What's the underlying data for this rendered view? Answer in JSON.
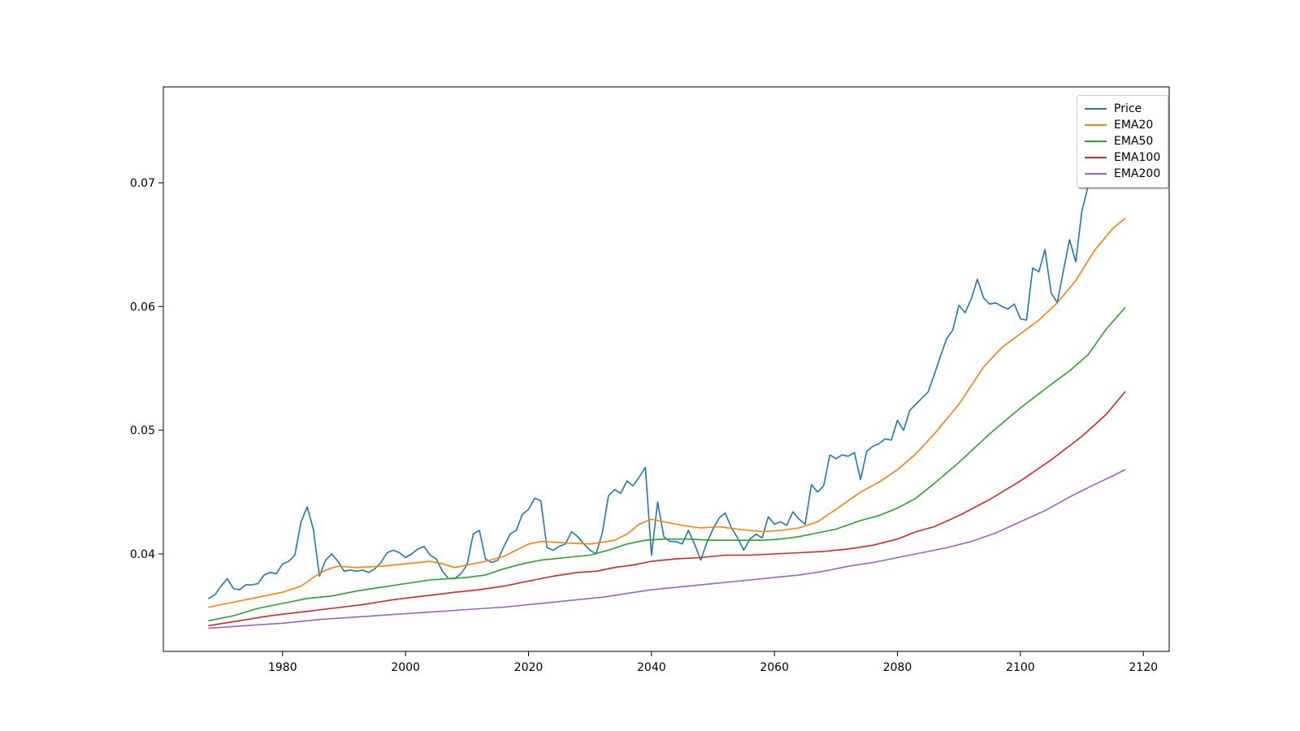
{
  "figure": {
    "background": "#ffffff",
    "description": "Line chart of Price with EMA20/EMA50/EMA100/EMA200 overlays"
  },
  "chart_data": {
    "type": "line",
    "title": "",
    "xlabel": "",
    "ylabel": "",
    "grid": false,
    "xlim": [
      1960.6,
      2124.2
    ],
    "ylim": [
      0.03212,
      0.07775
    ],
    "x_ticks": [
      1980,
      2000,
      2020,
      2040,
      2060,
      2080,
      2100,
      2120
    ],
    "x_tick_labels": [
      "1980",
      "2000",
      "2020",
      "2040",
      "2060",
      "2080",
      "2100",
      "2120"
    ],
    "y_ticks": [
      0.04,
      0.05,
      0.06,
      0.07
    ],
    "y_tick_labels": [
      "0.04",
      "0.05",
      "0.06",
      "0.07"
    ],
    "legend": {
      "position": "upper right",
      "labels": [
        "Price",
        "EMA20",
        "EMA50",
        "EMA100",
        "EMA200"
      ]
    },
    "series": [
      {
        "name": "Price",
        "color": "#1f77b4",
        "x_start": 1968,
        "x_step": 1,
        "values": [
          0.0364,
          0.0367,
          0.0374,
          0.038,
          0.0372,
          0.0371,
          0.0375,
          0.0375,
          0.0376,
          0.0383,
          0.0385,
          0.0384,
          0.0392,
          0.0394,
          0.0399,
          0.0426,
          0.0438,
          0.042,
          0.0382,
          0.0395,
          0.04,
          0.0394,
          0.0386,
          0.0387,
          0.0386,
          0.0387,
          0.0385,
          0.0388,
          0.0393,
          0.0401,
          0.0403,
          0.0401,
          0.0397,
          0.04,
          0.0404,
          0.0406,
          0.0399,
          0.0396,
          0.0386,
          0.038,
          0.038,
          0.0384,
          0.0391,
          0.0416,
          0.0419,
          0.0396,
          0.0393,
          0.0395,
          0.0406,
          0.0416,
          0.0419,
          0.0432,
          0.0436,
          0.0445,
          0.0443,
          0.0405,
          0.0403,
          0.0406,
          0.0408,
          0.0418,
          0.0414,
          0.0408,
          0.0403,
          0.04,
          0.0417,
          0.0447,
          0.0452,
          0.0449,
          0.0459,
          0.0455,
          0.0462,
          0.047,
          0.0399,
          0.0442,
          0.0414,
          0.041,
          0.041,
          0.0408,
          0.0419,
          0.0408,
          0.0395,
          0.0409,
          0.042,
          0.0429,
          0.0433,
          0.0421,
          0.0413,
          0.0403,
          0.0412,
          0.0416,
          0.0413,
          0.043,
          0.0424,
          0.0426,
          0.0423,
          0.0434,
          0.0428,
          0.0424,
          0.0456,
          0.045,
          0.0455,
          0.048,
          0.0477,
          0.048,
          0.0479,
          0.0482,
          0.046,
          0.0483,
          0.0487,
          0.0489,
          0.0493,
          0.0492,
          0.0508,
          0.05,
          0.0516,
          0.0521,
          0.0526,
          0.0531,
          0.0545,
          0.056,
          0.0574,
          0.0581,
          0.0601,
          0.0595,
          0.0606,
          0.0622,
          0.0607,
          0.0602,
          0.0603,
          0.06,
          0.0598,
          0.0602,
          0.059,
          0.0589,
          0.0631,
          0.0628,
          0.0646,
          0.0611,
          0.0603,
          0.0629,
          0.0654,
          0.0636,
          0.0677,
          0.0697,
          0.0699,
          0.07,
          0.0715,
          0.073,
          0.0745,
          0.0757
        ]
      },
      {
        "name": "EMA20",
        "color": "#ff7f0e",
        "x": [
          1968,
          1972,
          1976,
          1980,
          1983,
          1985,
          1987,
          1989,
          1992,
          1996,
          2000,
          2004,
          2006,
          2008,
          2010,
          2013,
          2016,
          2018,
          2020,
          2022,
          2026,
          2030,
          2034,
          2036,
          2038,
          2040,
          2042,
          2045,
          2048,
          2051,
          2054,
          2058,
          2061,
          2064,
          2067,
          2070,
          2074,
          2077,
          2080,
          2083,
          2086,
          2090,
          2094,
          2097,
          2100,
          2103,
          2106,
          2109,
          2112,
          2115,
          2117
        ],
        "values": [
          0.0357,
          0.0361,
          0.0365,
          0.0369,
          0.0374,
          0.0381,
          0.0387,
          0.039,
          0.0389,
          0.039,
          0.0392,
          0.0394,
          0.0392,
          0.0389,
          0.0391,
          0.0394,
          0.0398,
          0.0403,
          0.0408,
          0.041,
          0.0409,
          0.0408,
          0.0411,
          0.0416,
          0.0424,
          0.0428,
          0.0426,
          0.0423,
          0.0421,
          0.0422,
          0.042,
          0.0418,
          0.0419,
          0.0421,
          0.0426,
          0.0436,
          0.045,
          0.0458,
          0.0468,
          0.0481,
          0.0497,
          0.0521,
          0.0551,
          0.0567,
          0.0578,
          0.0589,
          0.0603,
          0.0621,
          0.0645,
          0.0663,
          0.0671
        ]
      },
      {
        "name": "EMA50",
        "color": "#2ca02c",
        "x": [
          1968,
          1972,
          1976,
          1980,
          1984,
          1988,
          1992,
          1996,
          2000,
          2004,
          2007,
          2010,
          2013,
          2016,
          2019,
          2022,
          2026,
          2030,
          2033,
          2036,
          2039,
          2042,
          2046,
          2050,
          2054,
          2058,
          2061,
          2064,
          2067,
          2070,
          2074,
          2077,
          2080,
          2083,
          2086,
          2090,
          2095,
          2100,
          2105,
          2108,
          2111,
          2114,
          2117
        ],
        "values": [
          0.0346,
          0.035,
          0.0356,
          0.036,
          0.0364,
          0.0366,
          0.037,
          0.0373,
          0.0376,
          0.0379,
          0.038,
          0.0381,
          0.0383,
          0.0388,
          0.0392,
          0.0395,
          0.0397,
          0.0399,
          0.0403,
          0.0408,
          0.0411,
          0.0412,
          0.0412,
          0.0411,
          0.0411,
          0.0411,
          0.0412,
          0.0414,
          0.0417,
          0.042,
          0.0427,
          0.0431,
          0.0437,
          0.0445,
          0.0457,
          0.0474,
          0.0497,
          0.0518,
          0.0537,
          0.0548,
          0.0561,
          0.0582,
          0.0599
        ]
      },
      {
        "name": "EMA100",
        "color": "#d62728",
        "x": [
          1968,
          1973,
          1978,
          1983,
          1988,
          1993,
          1998,
          2003,
          2008,
          2012,
          2016,
          2020,
          2024,
          2028,
          2031,
          2034,
          2037,
          2040,
          2044,
          2048,
          2052,
          2056,
          2060,
          2064,
          2068,
          2072,
          2076,
          2080,
          2083,
          2086,
          2090,
          2095,
          2100,
          2105,
          2110,
          2114,
          2117
        ],
        "values": [
          0.0342,
          0.0346,
          0.035,
          0.0353,
          0.0356,
          0.0359,
          0.0363,
          0.0366,
          0.0369,
          0.0371,
          0.0374,
          0.0378,
          0.0382,
          0.0385,
          0.0386,
          0.0389,
          0.0391,
          0.0394,
          0.0396,
          0.0397,
          0.0399,
          0.0399,
          0.04,
          0.0401,
          0.0402,
          0.0404,
          0.0407,
          0.0412,
          0.0418,
          0.0422,
          0.0431,
          0.0444,
          0.0459,
          0.0476,
          0.0495,
          0.0513,
          0.0531
        ]
      },
      {
        "name": "EMA200",
        "color": "#9467bd",
        "x": [
          1968,
          1974,
          1980,
          1986,
          1992,
          1998,
          2004,
          2010,
          2016,
          2022,
          2028,
          2032,
          2036,
          2040,
          2044,
          2048,
          2052,
          2056,
          2060,
          2064,
          2068,
          2072,
          2076,
          2080,
          2084,
          2088,
          2092,
          2096,
          2100,
          2104,
          2108,
          2112,
          2115,
          2117
        ],
        "values": [
          0.034,
          0.0342,
          0.0344,
          0.0347,
          0.0349,
          0.0351,
          0.0353,
          0.0355,
          0.0357,
          0.036,
          0.0363,
          0.0365,
          0.0368,
          0.0371,
          0.0373,
          0.0375,
          0.0377,
          0.0379,
          0.0381,
          0.0383,
          0.0386,
          0.039,
          0.0393,
          0.0397,
          0.0401,
          0.0405,
          0.041,
          0.0417,
          0.0426,
          0.0435,
          0.0446,
          0.0456,
          0.0463,
          0.0468
        ]
      }
    ]
  }
}
